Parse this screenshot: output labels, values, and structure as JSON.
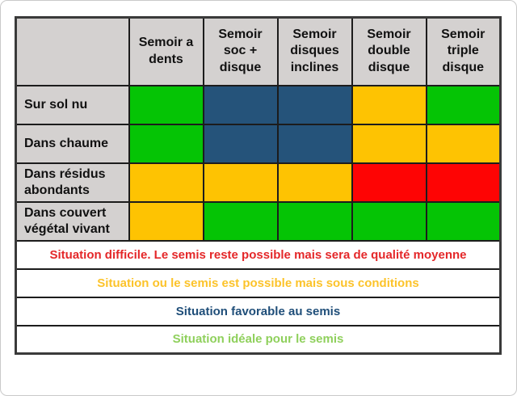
{
  "chart_data": {
    "type": "table",
    "columns": [
      "Semoir a dents",
      "Semoir soc + disque",
      "Semoir disques inclines",
      "Semoir double disque",
      "Semoir triple disque"
    ],
    "rows": [
      "Sur sol nu",
      "Dans chaume",
      "Dans résidus abondants",
      "Dans couvert végétal vivant"
    ],
    "cell_ratings": [
      [
        "ideal",
        "favorable",
        "favorable",
        "conditional",
        "ideal"
      ],
      [
        "ideal",
        "favorable",
        "favorable",
        "conditional",
        "conditional"
      ],
      [
        "conditional",
        "conditional",
        "conditional",
        "difficult",
        "difficult"
      ],
      [
        "conditional",
        "ideal",
        "ideal",
        "ideal",
        "ideal"
      ]
    ],
    "legend": [
      {
        "key": "difficult",
        "label": "Situation difficile. Le semis reste possible mais sera de qualité moyenne"
      },
      {
        "key": "conditional",
        "label": "Situation ou le semis est possible mais sous conditions"
      },
      {
        "key": "favorable",
        "label": "Situation favorable au semis"
      },
      {
        "key": "ideal",
        "label": "Situation idéale pour le semis"
      }
    ]
  },
  "colors": {
    "ideal_cell": "#05c405",
    "favorable_cell": "#25537a",
    "conditional_cell": "#fec302",
    "difficult_cell": "#fe0404",
    "header_bg": "#d4d1d0",
    "difficult_text": "#e42729",
    "conditional_text": "#fcc32a",
    "favorable_text": "#1f4e79",
    "ideal_text": "#8fd05c",
    "grid_border": "#1c1c1c"
  }
}
